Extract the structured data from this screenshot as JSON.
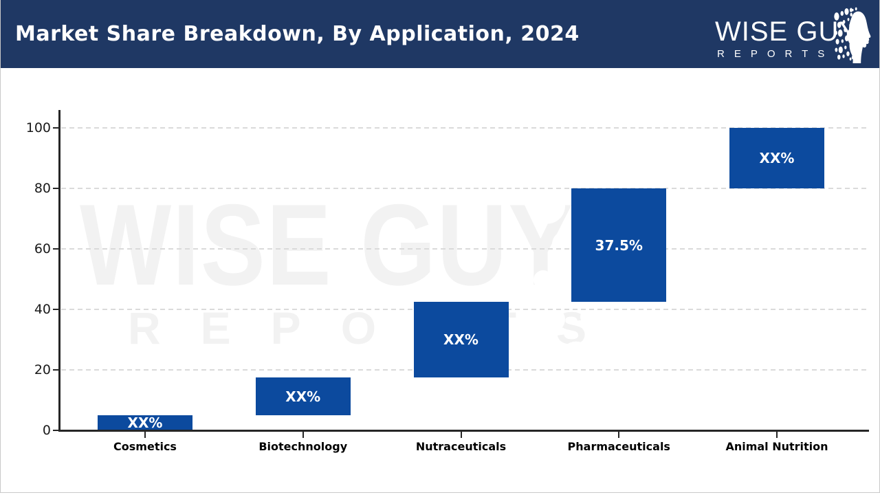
{
  "header": {
    "title": "Market Share Breakdown, By Application, 2024",
    "logo": {
      "name_top": "WISE GUY",
      "name_bottom": "REPORTS"
    }
  },
  "watermark": {
    "line1": "WISE GUY",
    "line2": "REPORTS"
  },
  "colors": {
    "header_bg": "#1f3864",
    "header_text": "#ffffff",
    "bar": "#0c4a9e",
    "bar_label": "#ffffff",
    "grid": "#dadada",
    "axis": "#262626",
    "tick_text": "#1a1a1a",
    "watermark_text": "#f2f2f2",
    "watermark_face": "#eff0f1",
    "page_border": "#c9c9c9"
  },
  "chart_data": {
    "type": "bar",
    "subtype": "waterfall",
    "title": "Market Share Breakdown, By Application, 2024",
    "xlabel": "",
    "ylabel": "",
    "categories": [
      "Cosmetics",
      "Biotechnology",
      "Nutraceuticals",
      "Pharmaceuticals",
      "Animal Nutrition"
    ],
    "bars": [
      {
        "category": "Cosmetics",
        "start": 0,
        "end": 5,
        "label": "XX%"
      },
      {
        "category": "Biotechnology",
        "start": 5,
        "end": 17.5,
        "label": "XX%"
      },
      {
        "category": "Nutraceuticals",
        "start": 17.5,
        "end": 42.5,
        "label": "XX%"
      },
      {
        "category": "Pharmaceuticals",
        "start": 42.5,
        "end": 80,
        "label": "37.5%"
      },
      {
        "category": "Animal Nutrition",
        "start": 80,
        "end": 100,
        "label": "XX%"
      }
    ],
    "yticks": [
      0,
      20,
      40,
      60,
      80,
      100
    ],
    "ylim": [
      0,
      106
    ],
    "grid": "horizontal-dashed",
    "legend": null
  }
}
